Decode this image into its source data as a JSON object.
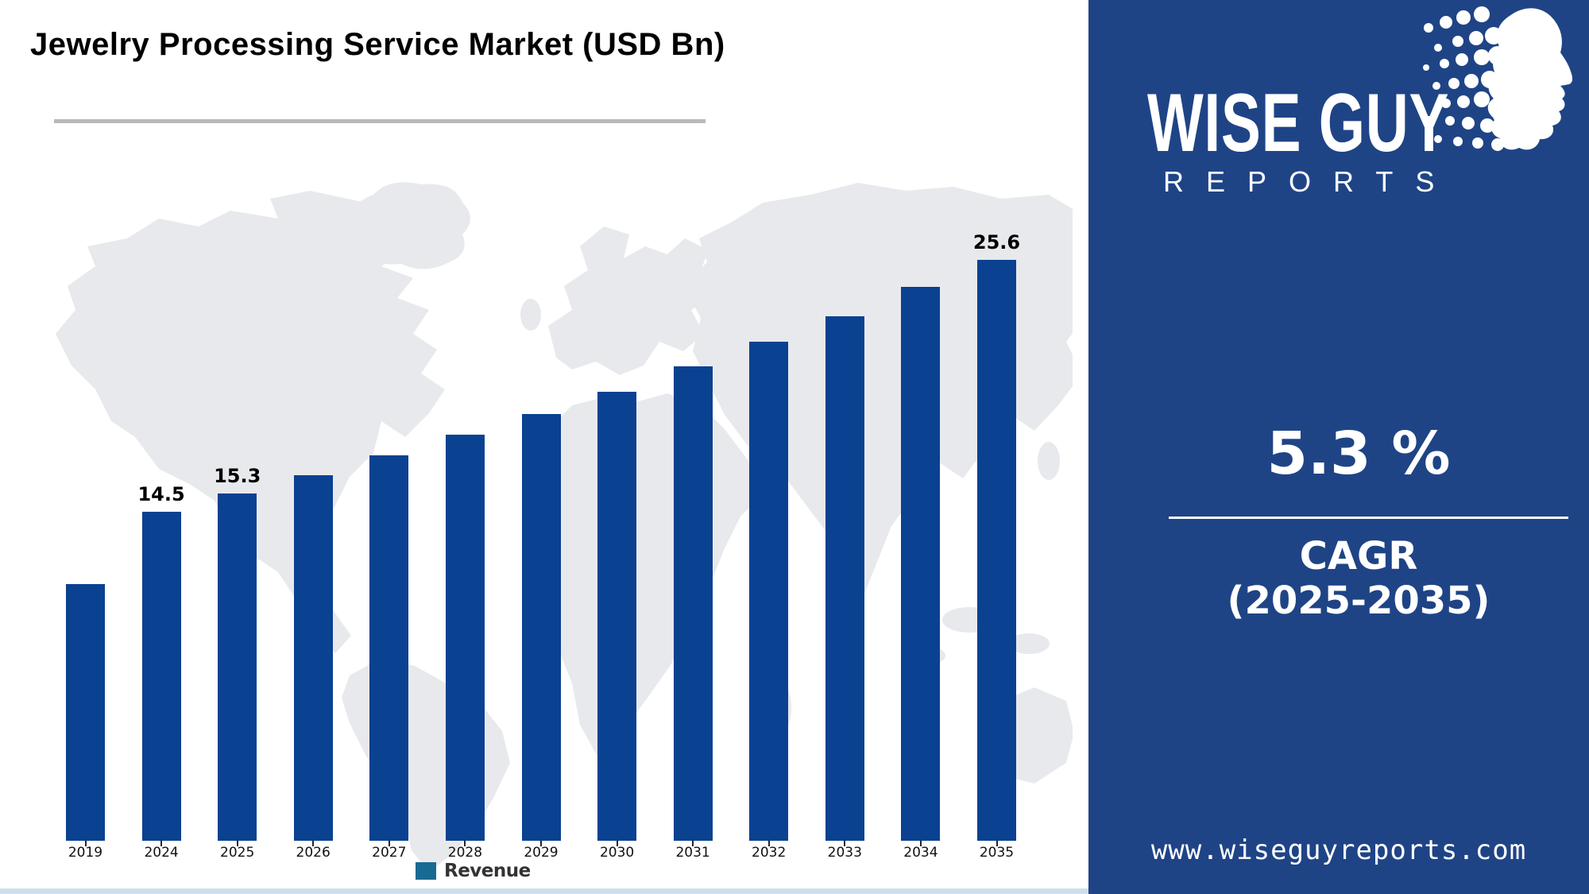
{
  "title": "Jewelry Processing Service Market (USD Bn)",
  "chart_data": {
    "type": "bar",
    "title": "Jewelry Processing Service Market (USD Bn)",
    "categories": [
      "2019",
      "2024",
      "2025",
      "2026",
      "2027",
      "2028",
      "2029",
      "2030",
      "2031",
      "2032",
      "2033",
      "2034",
      "2035"
    ],
    "series": [
      {
        "name": "Revenue",
        "values": [
          11.3,
          14.5,
          15.3,
          16.1,
          17.0,
          17.9,
          18.8,
          19.8,
          20.9,
          22.0,
          23.1,
          24.4,
          25.6
        ]
      }
    ],
    "bar_labels": {
      "2024": "14.5",
      "2025": "15.3",
      "2035": "25.6"
    },
    "xlabel": "",
    "ylabel": "",
    "ylim": [
      0,
      27
    ],
    "grid": false,
    "legend_position": "bottom-center",
    "bar_color": "#0a4191"
  },
  "legend": {
    "label": "Revenue",
    "swatch_color": "#186a93"
  },
  "sidebar": {
    "logo": {
      "line1": "WISE GUY",
      "line2": "REPORTS"
    },
    "cagr_value": "5.3 %",
    "cagr_label_line1": "CAGR",
    "cagr_label_line2": "(2025-2035)",
    "website": "www.wiseguyreports.com",
    "background_color": "#1f4486"
  },
  "colors": {
    "bar": "#0a4191",
    "sidebar": "#1f4486",
    "map": "#e8e9ec",
    "accent_strip": "#cfdeee"
  }
}
